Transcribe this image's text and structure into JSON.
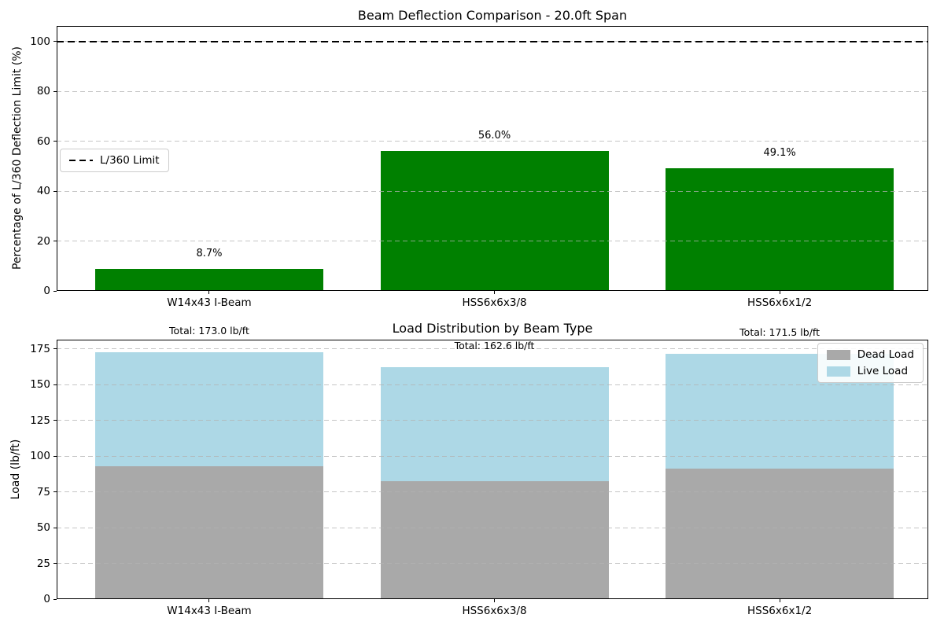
{
  "chart_data": [
    {
      "type": "bar",
      "title": "Beam Deflection Comparison - 20.0ft Span",
      "xlabel": "",
      "ylabel": "Percentage of L/360 Deflection Limit (%)",
      "categories": [
        "W14x43 I-Beam",
        "HSS6x6x3/8",
        "HSS6x6x1/2"
      ],
      "values": [
        8.7,
        56.0,
        49.1
      ],
      "bar_labels": [
        "8.7%",
        "56.0%",
        "49.1%"
      ],
      "bar_color": "#008000",
      "yticks": [
        0,
        20,
        40,
        60,
        80,
        100
      ],
      "ylim": [
        0,
        106.3
      ],
      "grid": "dashed-horizontal",
      "limit_line": {
        "value": 100,
        "color": "#000000",
        "style": "dashed"
      },
      "legend": {
        "position": "center-left",
        "entries": [
          {
            "label": "L/360 Limit",
            "type": "dashed-line",
            "color": "#000000"
          }
        ]
      }
    },
    {
      "type": "stacked-bar",
      "title": "Load Distribution by Beam Type",
      "xlabel": "",
      "ylabel": "Load (lb/ft)",
      "categories": [
        "W14x43 I-Beam",
        "HSS6x6x3/8",
        "HSS6x6x1/2"
      ],
      "series": [
        {
          "name": "Dead Load",
          "color": "#a9a9a9",
          "values": [
            93.0,
            82.6,
            91.5
          ]
        },
        {
          "name": "Live Load",
          "color": "#add8e6",
          "values": [
            80.0,
            80.0,
            80.0
          ]
        }
      ],
      "totals": [
        173.0,
        162.6,
        171.5
      ],
      "total_labels": [
        "Total: 173.0 lb/ft",
        "Total: 162.6 lb/ft",
        "Total: 171.5 lb/ft"
      ],
      "yticks": [
        0,
        25,
        50,
        75,
        100,
        125,
        150,
        175
      ],
      "ylim": [
        0,
        181.6
      ],
      "grid": "dashed-horizontal",
      "legend": {
        "position": "top-right",
        "entries": [
          {
            "label": "Dead Load",
            "type": "patch",
            "color": "#a9a9a9"
          },
          {
            "label": "Live Load",
            "type": "patch",
            "color": "#add8e6"
          }
        ]
      }
    }
  ]
}
